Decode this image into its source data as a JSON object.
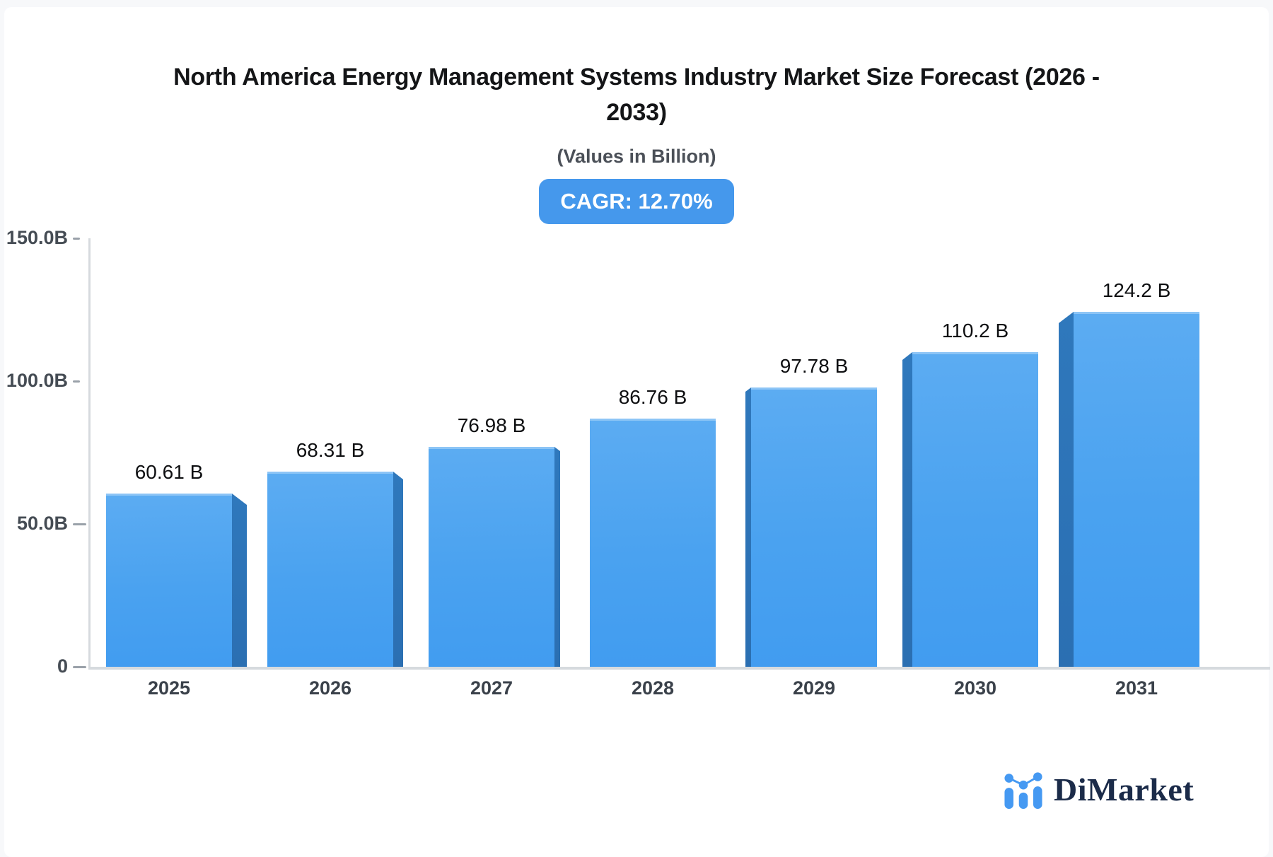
{
  "page": {
    "title_line1": "North America Energy Management Systems Industry Market Size Forecast (2026 -",
    "title_line2": "2033)",
    "subtitle": "(Values in Billion)",
    "badge": "CAGR: 12.70%",
    "brand": {
      "name": "DiMarket",
      "icon": "bar-chart-logo-icon"
    }
  },
  "colors": {
    "badge_bg": "#4598ec",
    "bar_face_top": "#5cacf2",
    "bar_face_bottom": "#419cf0",
    "bar_side": "#2d73b7",
    "axis": "#d6dade",
    "page_bg": "#f7f8fa",
    "brand_blue": "#4599f2",
    "brand_navy": "#1b2b49"
  },
  "chart_data": {
    "type": "bar",
    "title": "North America Energy Management Systems Industry Market Size Forecast (2026 - 2033)",
    "subtitle": "(Values in Billion)",
    "annotation": "CAGR: 12.70%",
    "categories": [
      "2025",
      "2026",
      "2027",
      "2028",
      "2029",
      "2030",
      "2031"
    ],
    "values": [
      60.61,
      68.31,
      76.98,
      86.76,
      97.78,
      110.2,
      124.2
    ],
    "value_labels": [
      "60.61 B",
      "68.31 B",
      "76.98 B",
      "86.76 B",
      "97.78 B",
      "110.2 B",
      "124.2 B"
    ],
    "xlabel": "",
    "ylabel": "",
    "ylim": [
      0,
      150
    ],
    "yticks": [
      {
        "value": 150,
        "label": "150.0B"
      },
      {
        "value": 100,
        "label": "100.0B"
      },
      {
        "value": 50,
        "label": "50.0B"
      },
      {
        "value": 0,
        "label": "0"
      }
    ],
    "grid": false,
    "legend": false,
    "bar_style": "3d-extruded"
  }
}
